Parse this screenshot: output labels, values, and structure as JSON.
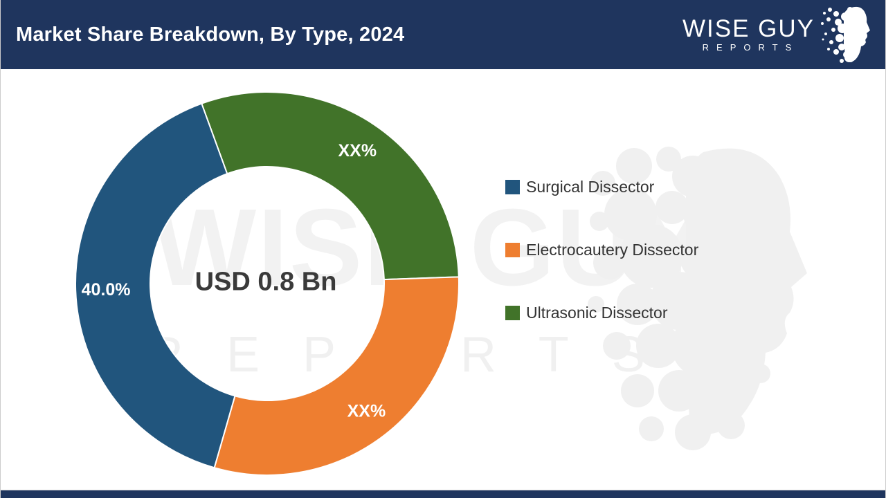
{
  "header": {
    "title": "Market Share Breakdown, By Type, 2024",
    "logo": {
      "line1": "WISE GUY",
      "line2": "REPORTS"
    }
  },
  "watermark": {
    "line1": "WISE GUY",
    "line2": "REPORTS"
  },
  "chart_data": {
    "type": "pie",
    "subtype": "donut",
    "title": "Market Share Breakdown, By Type, 2024",
    "center_label": "USD 0.8 Bn",
    "start_angle_deg": 110,
    "direction": "clockwise",
    "segments": [
      {
        "name": "Ultrasonic Dissector",
        "value_pct": 30,
        "display_label": "XX%",
        "color": "#417329"
      },
      {
        "name": "Electrocautery Dissector",
        "value_pct": 30,
        "display_label": "XX%",
        "color": "#ee7e30"
      },
      {
        "name": "Surgical Dissector",
        "value_pct": 40,
        "display_label": "40.0%",
        "color": "#21557d"
      }
    ],
    "legend_position": "right"
  },
  "legend": {
    "items": [
      {
        "label": "Surgical Dissector",
        "color": "#21557d"
      },
      {
        "label": "Electrocautery Dissector",
        "color": "#ee7e30"
      },
      {
        "label": "Ultrasonic Dissector",
        "color": "#417329"
      }
    ]
  },
  "colors": {
    "header_bg": "#1f355e",
    "footer_bg": "#1f355e",
    "center_text": "#3a3a3a",
    "watermark": "#f2f2f2"
  }
}
